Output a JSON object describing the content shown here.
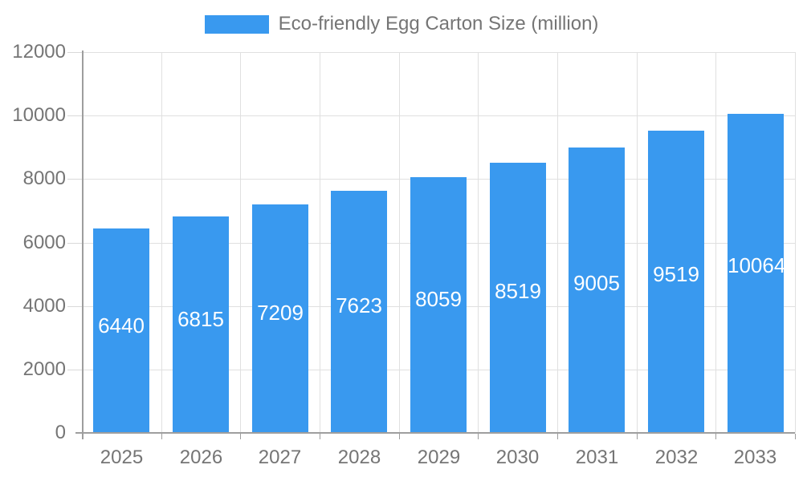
{
  "legend": {
    "label": "Eco-friendly Egg Carton Size (million)"
  },
  "colors": {
    "bar": "#3999ef",
    "grid": "#e0e0e0",
    "axis": "#9e9e9e",
    "y_tick_mark": "#d9d9d9",
    "tick_text": "#757575",
    "value_label": "#ffffff",
    "background": "#ffffff"
  },
  "chart_data": {
    "type": "bar",
    "title": "Eco-friendly Egg Carton Size (million)",
    "categories": [
      "2025",
      "2026",
      "2027",
      "2028",
      "2029",
      "2030",
      "2031",
      "2032",
      "2033"
    ],
    "values": [
      6440,
      6815,
      7209,
      7623,
      8059,
      8519,
      9005,
      9519,
      10064
    ],
    "series": [
      {
        "name": "Eco-friendly Egg Carton Size (million)",
        "values": [
          6440,
          6815,
          7209,
          7623,
          8059,
          8519,
          9005,
          9519,
          10064
        ]
      }
    ],
    "xlabel": "",
    "ylabel": "",
    "ylim": [
      0,
      12000
    ],
    "y_ticks": [
      0,
      2000,
      4000,
      6000,
      8000,
      10000,
      12000
    ],
    "grid": true,
    "legend_position": "top",
    "value_label_position": "inside"
  }
}
